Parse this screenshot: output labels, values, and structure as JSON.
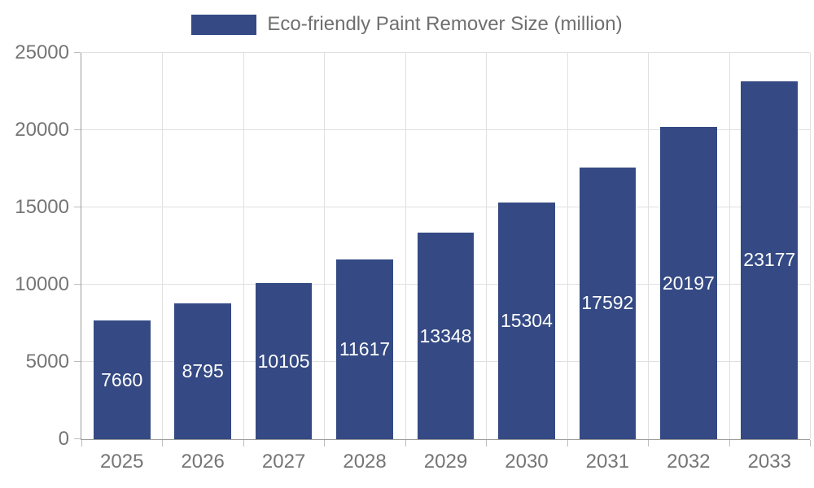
{
  "legend": {
    "label": "Eco-friendly Paint Remover Size (million)",
    "swatch_color": "#354a84"
  },
  "chart_data": {
    "type": "bar",
    "title": "Eco-friendly Paint Remover Size (million)",
    "categories": [
      "2025",
      "2026",
      "2027",
      "2028",
      "2029",
      "2030",
      "2031",
      "2032",
      "2033"
    ],
    "values": [
      7660,
      8795,
      10105,
      11617,
      13348,
      15304,
      17592,
      20197,
      23177
    ],
    "xlabel": "",
    "ylabel": "",
    "ylim": [
      0,
      25000
    ],
    "yticks": [
      0,
      5000,
      10000,
      15000,
      20000,
      25000
    ],
    "bar_color": "#354a84",
    "bar_label_color": "#ffffff",
    "axis_text_color": "#757575",
    "grid": true,
    "legend_position": "top"
  }
}
